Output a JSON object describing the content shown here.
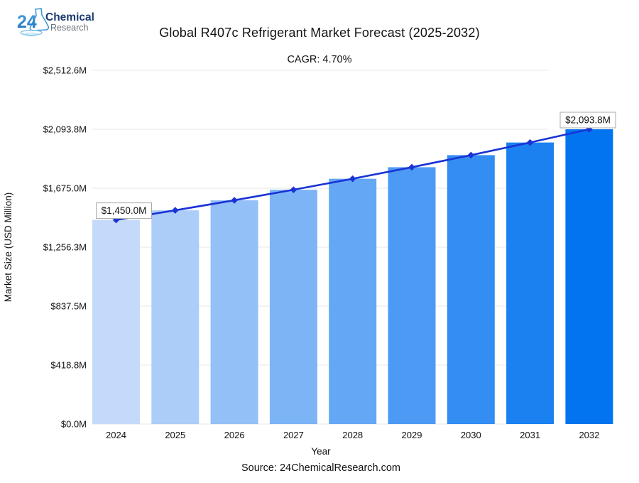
{
  "logo": {
    "number": "24",
    "word1": "Chemical",
    "word2": "Research"
  },
  "title": "Global R407c Refrigerant Market Forecast (2025-2032)",
  "subtitle": "CAGR: 4.70%",
  "footer": {
    "source": "Source: 24ChemicalResearch.com"
  },
  "chart_data": {
    "type": "bar",
    "title": "Global R407c Refrigerant Market Forecast (2025-2032)",
    "subtitle": "CAGR: 4.70%",
    "categories": [
      "2024",
      "2025",
      "2026",
      "2027",
      "2028",
      "2029",
      "2030",
      "2031",
      "2032"
    ],
    "series": [
      {
        "name": "Market Size",
        "type": "bar",
        "values": [
          1450.0,
          1518.2,
          1589.5,
          1664.2,
          1742.4,
          1824.3,
          1910.1,
          1999.8,
          2093.8
        ]
      },
      {
        "name": "Trend",
        "type": "line",
        "values": [
          1450.0,
          1518.2,
          1589.5,
          1664.2,
          1742.4,
          1824.3,
          1910.1,
          1999.8,
          2093.8
        ]
      }
    ],
    "xlabel": "Year",
    "ylabel": "Market Size (USD Million)",
    "ylim": [
      0,
      2512.6
    ],
    "yticks": [
      0,
      418.8,
      837.5,
      1256.3,
      1675.0,
      2093.8,
      2512.6
    ],
    "ytick_labels": [
      "$0.0M",
      "$418.8M",
      "$837.5M",
      "$1,256.3M",
      "$1,675.0M",
      "$2,093.8M",
      "$2,512.6M"
    ],
    "grid": true,
    "legend": false,
    "annotations": [
      {
        "category": "2024",
        "text": "$1,450.0M"
      },
      {
        "category": "2032",
        "text": "$2,093.8M"
      }
    ],
    "colors": {
      "bars": [
        "#C5DAFA",
        "#ADCDF9",
        "#94C0F8",
        "#7CB4F6",
        "#64A7F5",
        "#4C9AF4",
        "#338DF3",
        "#1B81F1",
        "#0374F0"
      ],
      "line": "#1933D6",
      "grid": "#E7E7E7",
      "annotation_border": "#A9A9A9"
    }
  }
}
